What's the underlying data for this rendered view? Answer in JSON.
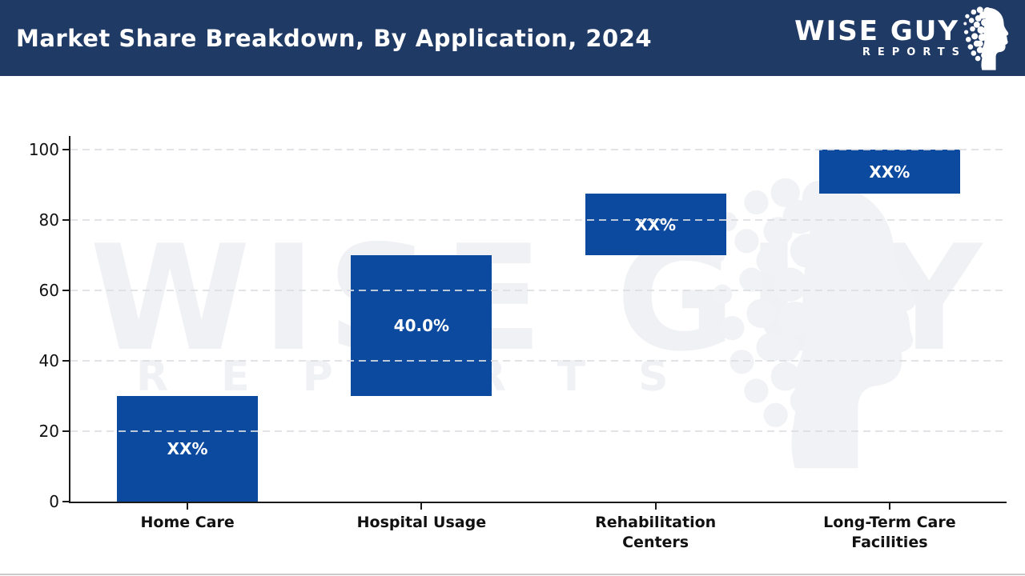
{
  "header": {
    "title": "Market Share Breakdown, By Application, 2024",
    "logo": {
      "line1": "WISE GUY",
      "line2": "REPORTS"
    },
    "background_color": "#203a66"
  },
  "watermark": {
    "line1": "WISE GUY",
    "line2": "REPORTS"
  },
  "chart_data": {
    "type": "bar",
    "subtype": "floating-segment-waterfall",
    "title": "Market Share Breakdown, By Application, 2024",
    "categories": [
      "Home Care",
      "Hospital Usage",
      "Rehabilitation Centers",
      "Long-Term Care Facilities"
    ],
    "series": [
      {
        "name": "Market Share (%)",
        "segments": [
          {
            "category": "Home Care",
            "start": 0,
            "end": 30,
            "label": "XX%"
          },
          {
            "category": "Hospital Usage",
            "start": 30,
            "end": 70,
            "label": "40.0%"
          },
          {
            "category": "Rehabilitation Centers",
            "start": 70,
            "end": 87.5,
            "label": "XX%"
          },
          {
            "category": "Long-Term Care Facilities",
            "start": 87.5,
            "end": 100,
            "label": "XX%"
          }
        ]
      }
    ],
    "xlabel": "",
    "ylabel": "",
    "ylim": [
      0,
      100
    ],
    "yticks": [
      0,
      20,
      40,
      60,
      80,
      100
    ],
    "grid": "horizontal-dashed",
    "legend": "none",
    "bar_color": "#0b4a9e"
  }
}
